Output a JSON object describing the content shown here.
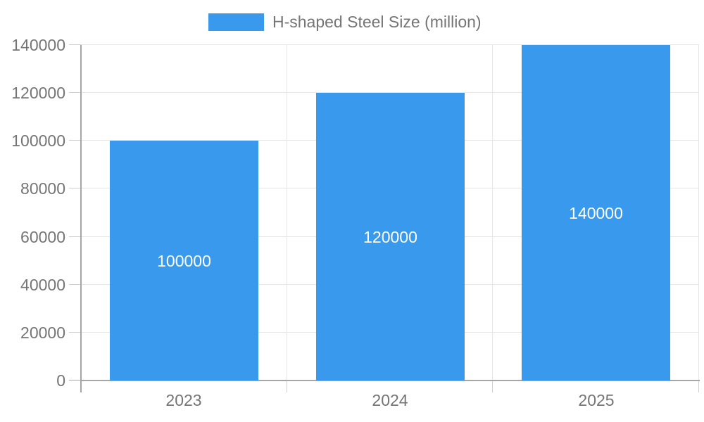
{
  "chart_data": {
    "type": "bar",
    "title": "",
    "legend": {
      "position": "top",
      "label": "H-shaped Steel Size (million)"
    },
    "categories": [
      "2023",
      "2024",
      "2025"
    ],
    "series": [
      {
        "name": "H-shaped Steel Size (million)",
        "values": [
          100000,
          120000,
          140000
        ]
      }
    ],
    "xlabel": "",
    "ylabel": "",
    "ylim": [
      0,
      140000
    ],
    "yticks": [
      0,
      20000,
      40000,
      60000,
      80000,
      100000,
      120000,
      140000
    ],
    "grid": true,
    "bar_value_labels_shown": true,
    "colors": {
      "bar": "#3999ec",
      "grid": "#e6e6e6",
      "axis": "#a6a6a6",
      "tick": "#d0d0d0",
      "text": "#757575",
      "bar_label": "#ffffff",
      "background": "#ffffff"
    }
  }
}
